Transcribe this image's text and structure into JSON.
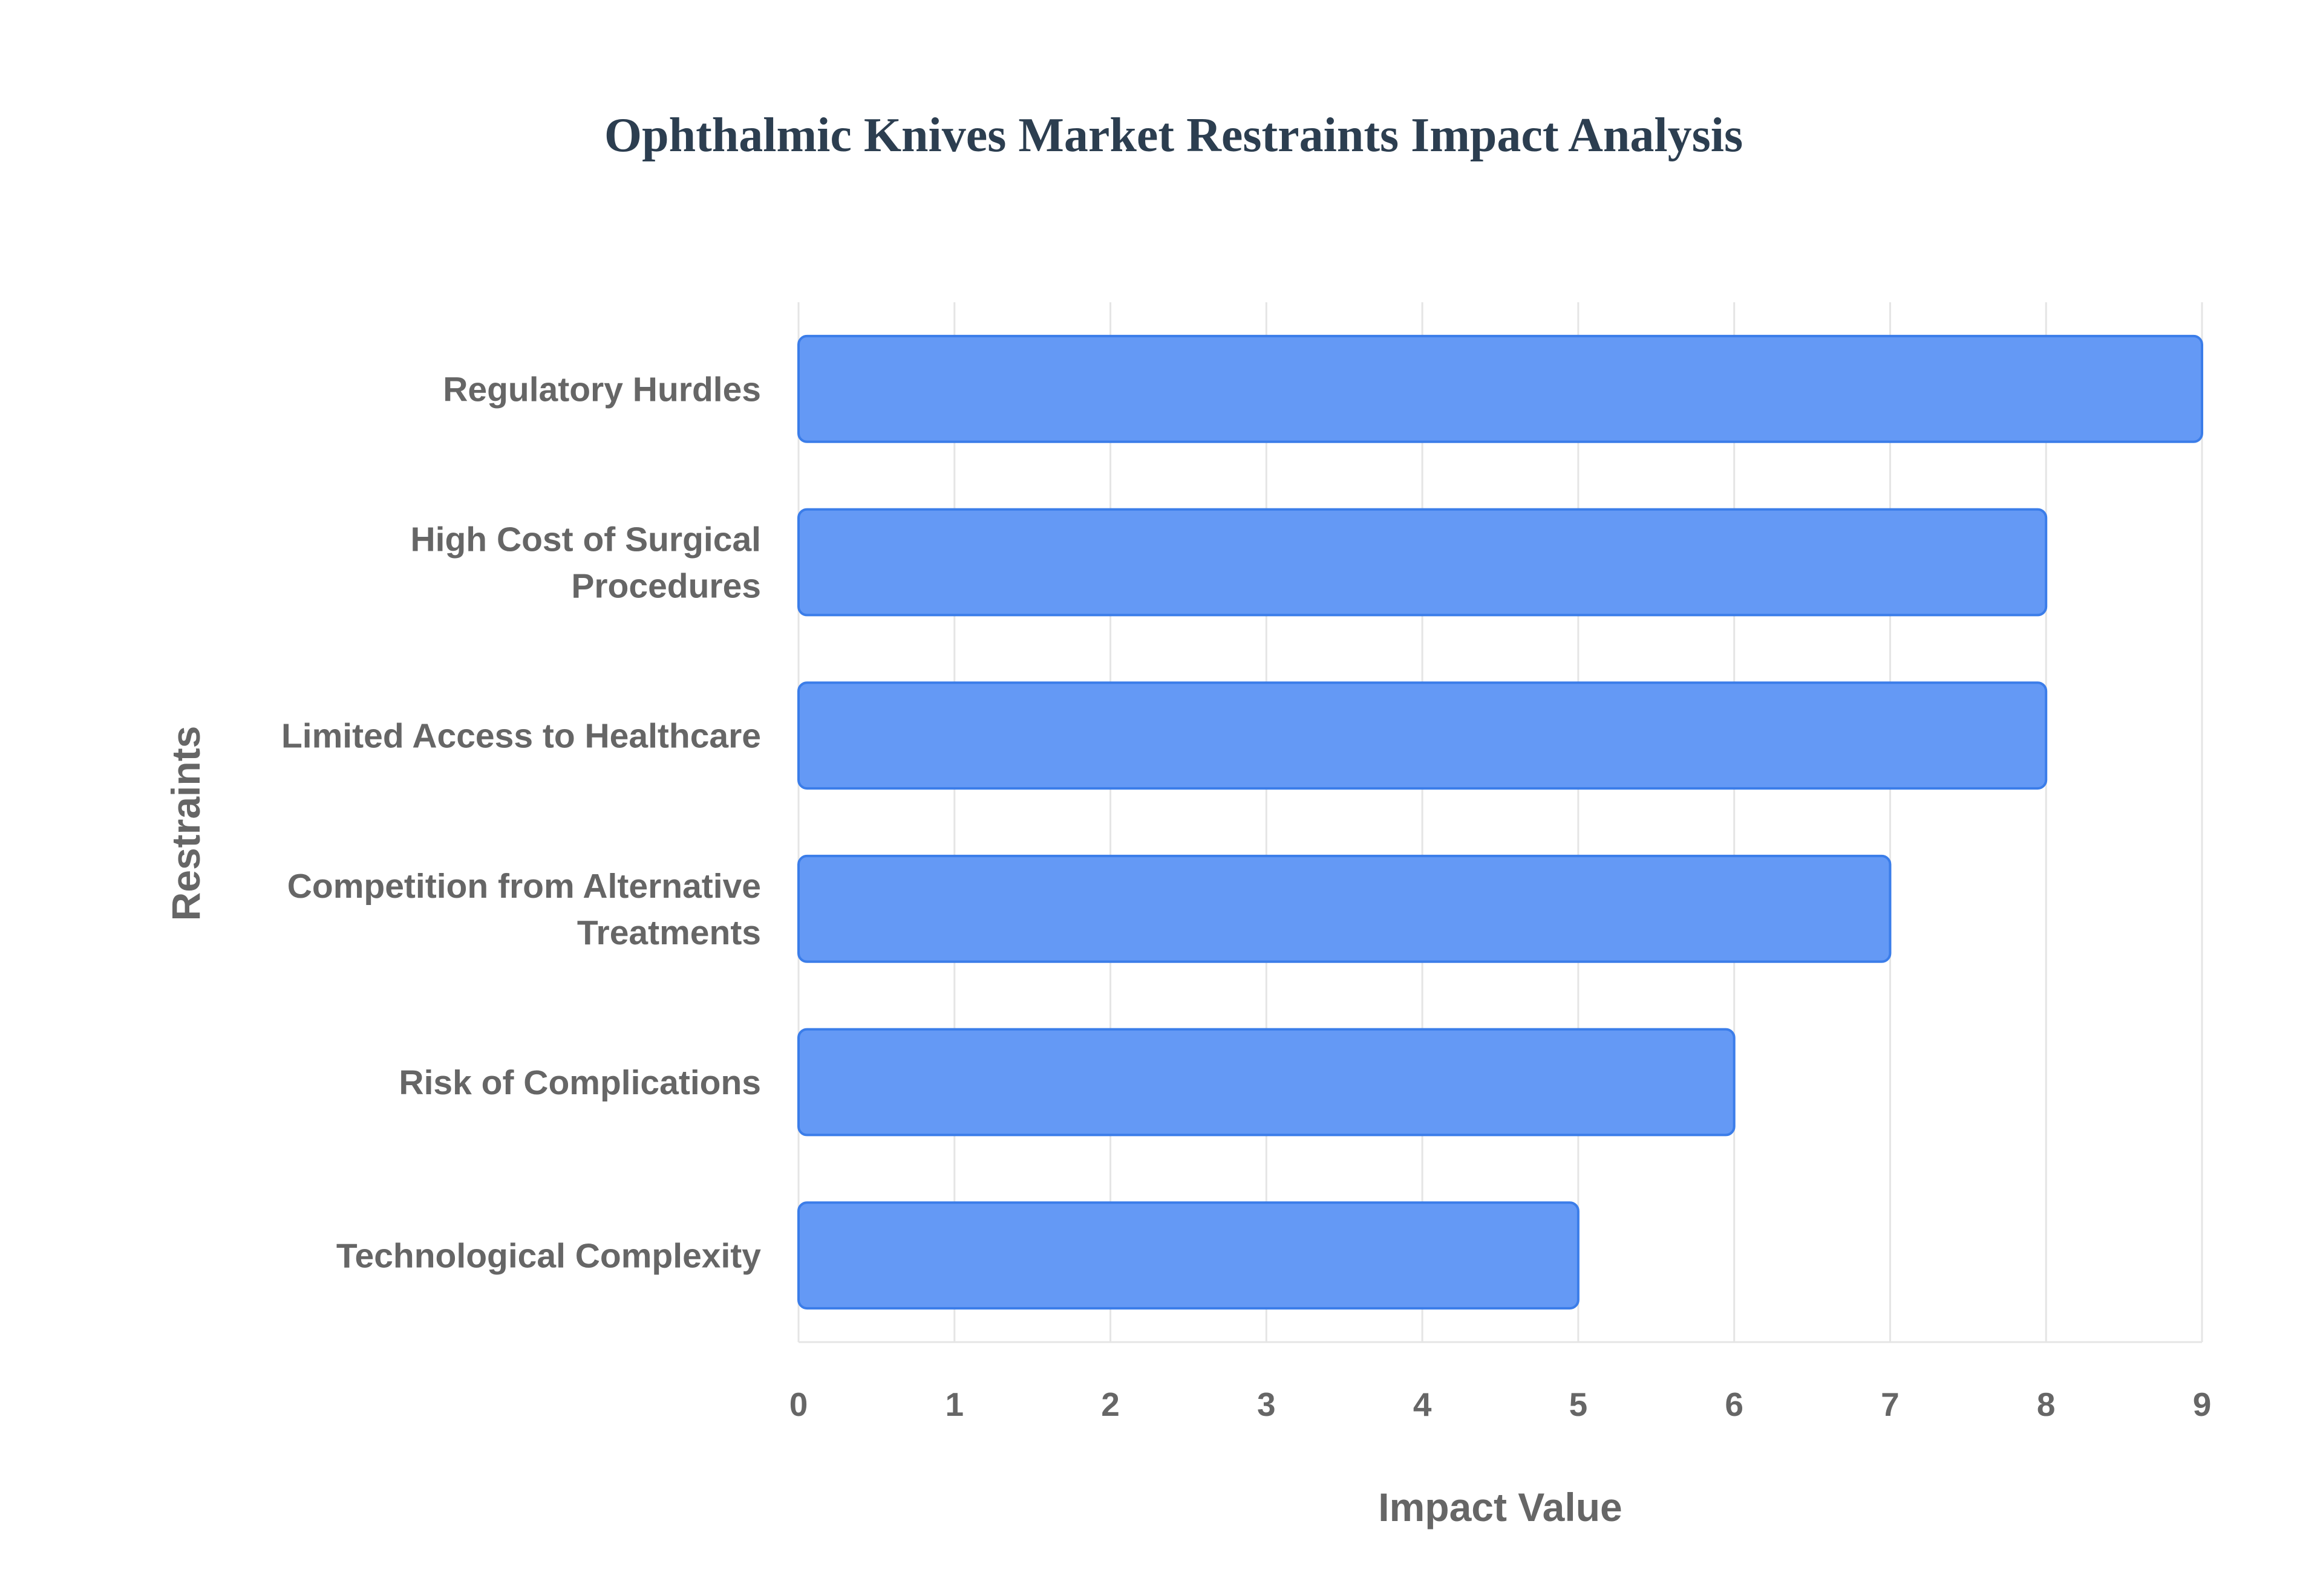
{
  "chart_data": {
    "type": "bar",
    "orientation": "horizontal",
    "title": "Ophthalmic Knives Market Restraints Impact Analysis",
    "xlabel": "Impact Value",
    "ylabel": "Restraints",
    "categories": [
      [
        "Regulatory Hurdles"
      ],
      [
        "High Cost of Surgical",
        "Procedures"
      ],
      [
        "Limited Access to Healthcare"
      ],
      [
        "Competition from Alternative",
        "Treatments"
      ],
      [
        "Risk of Complications"
      ],
      [
        "Technological Complexity"
      ]
    ],
    "values": [
      9,
      8,
      8,
      7,
      6,
      5
    ],
    "xlim": [
      0,
      9
    ],
    "xticks": [
      "0",
      "1",
      "2",
      "3",
      "4",
      "5",
      "6",
      "7",
      "8",
      "9"
    ],
    "grid": true,
    "legend": "none"
  },
  "colors": {
    "bar_fill": "#6499f5",
    "bar_stroke": "#3b7de9",
    "title": "#2c3e50",
    "label": "#666666",
    "grid": "#e5e5e5"
  }
}
